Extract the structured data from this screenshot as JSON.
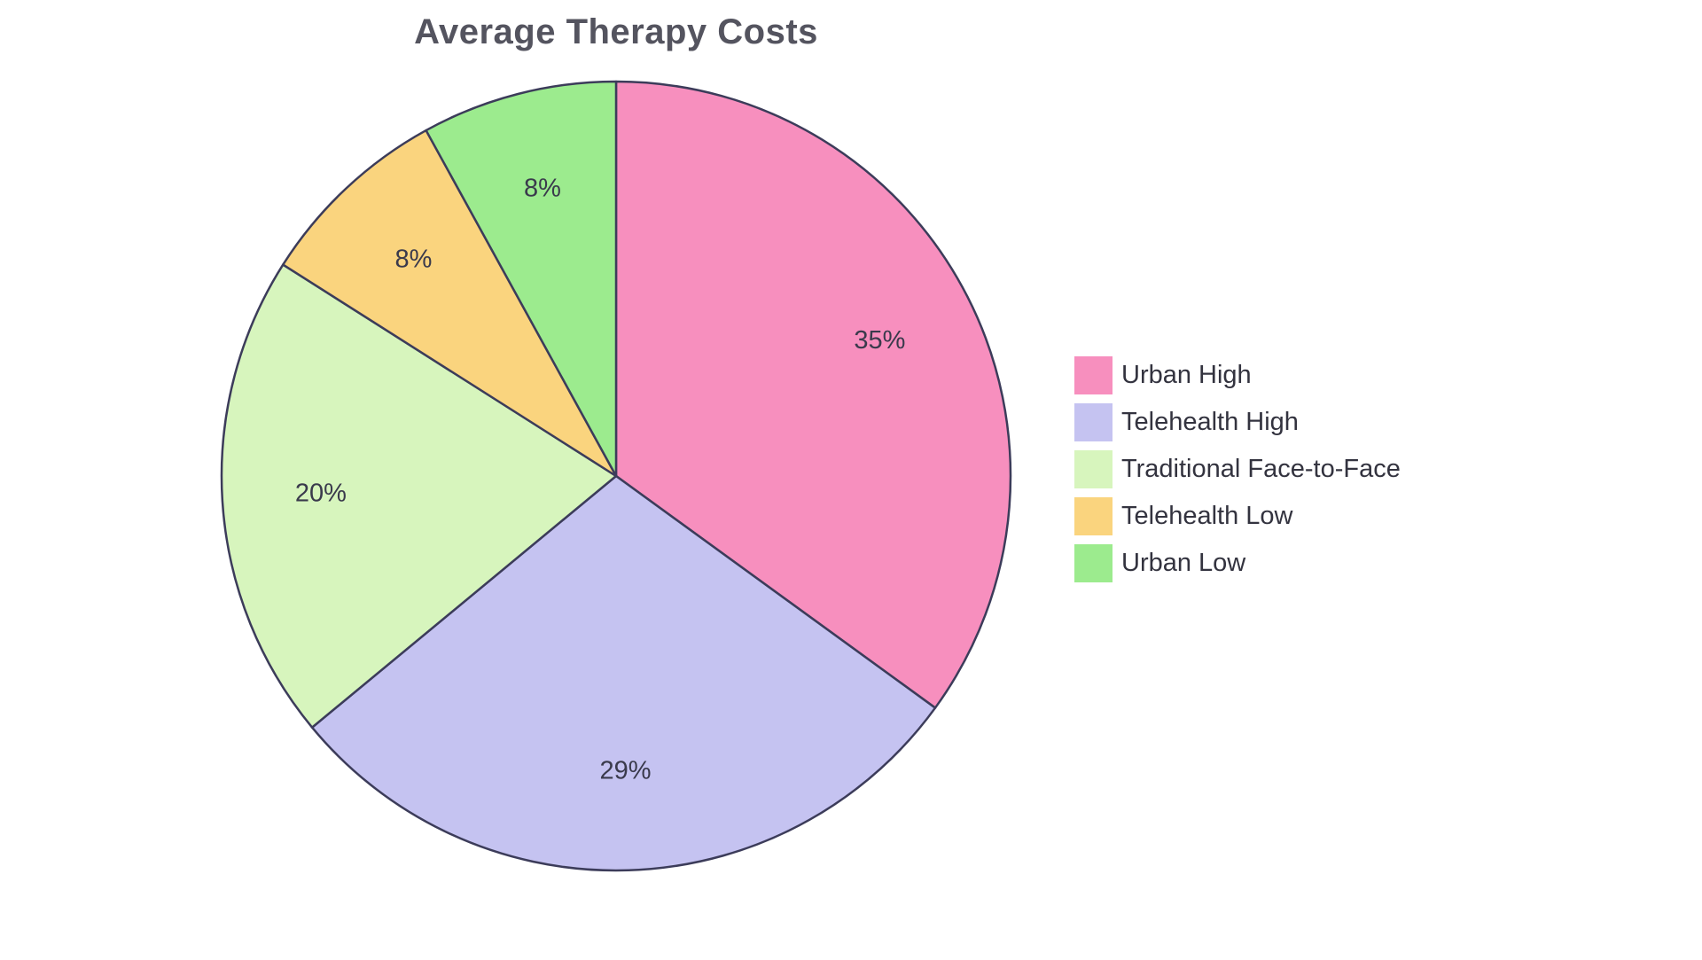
{
  "title": "Average Therapy Costs",
  "chart_data": {
    "type": "pie",
    "title": "Average Therapy Costs",
    "categories": [
      "Urban High",
      "Telehealth High",
      "Traditional Face-to-Face",
      "Telehealth Low",
      "Urban Low"
    ],
    "values": [
      35,
      29,
      20,
      8,
      8
    ],
    "slice_labels": [
      "35%",
      "29%",
      "20%",
      "8%",
      "8%"
    ],
    "colors": [
      "#F78FBE",
      "#C5C3F1",
      "#D7F5BD",
      "#FAD47E",
      "#9CEB8E"
    ],
    "stroke_color": "#3c3c5a",
    "background_color": "#ffffff",
    "start_angle_deg": 0,
    "direction": "clockwise",
    "legend_position": "right",
    "legend_entries": [
      "Urban High",
      "Telehealth High",
      "Traditional Face-to-Face",
      "Telehealth Low",
      "Urban Low"
    ]
  }
}
